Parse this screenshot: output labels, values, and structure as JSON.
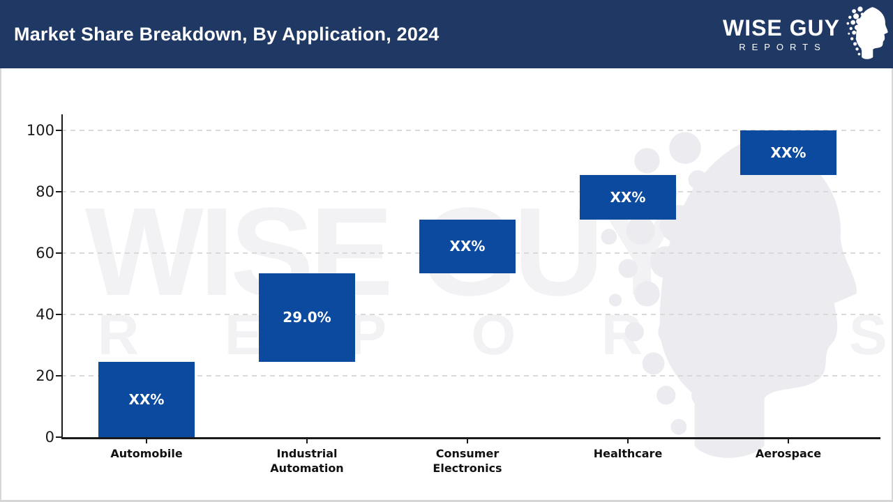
{
  "header": {
    "title": "Market Share Breakdown, By Application, 2024",
    "logo": {
      "line1": "WISE GUY",
      "line2": "REPORTS"
    }
  },
  "watermark": {
    "line1": "WISE GUY",
    "line2": "R E P O R T S"
  },
  "chart_data": {
    "type": "bar",
    "subtype": "floating-waterfall",
    "title": "Market Share Breakdown, By Application, 2024",
    "categories": [
      "Automobile",
      "Industrial Automation",
      "Consumer Electronics",
      "Healthcare",
      "Aerospace"
    ],
    "segments": [
      {
        "category": "Automobile",
        "start": 0,
        "end": 24.5,
        "label": "XX%"
      },
      {
        "category": "Industrial Automation",
        "start": 24.5,
        "end": 53.5,
        "label": "29.0%"
      },
      {
        "category": "Consumer Electronics",
        "start": 53.5,
        "end": 71,
        "label": "XX%"
      },
      {
        "category": "Healthcare",
        "start": 71,
        "end": 85.5,
        "label": "XX%"
      },
      {
        "category": "Aerospace",
        "start": 85.5,
        "end": 100,
        "label": "XX%"
      }
    ],
    "ylim": [
      0,
      100
    ],
    "yticks": [
      0,
      20,
      40,
      60,
      80,
      100
    ],
    "xlabel": "",
    "ylabel": "",
    "grid": "horizontal-dashed",
    "legend": "none",
    "colors": {
      "bar": "#0b4a9e",
      "bar_label": "#ffffff",
      "header_bg": "#1f3864",
      "axis": "#1a1a1a",
      "gridline": "#d9d9d9",
      "watermark": "#f2f2f5"
    }
  }
}
